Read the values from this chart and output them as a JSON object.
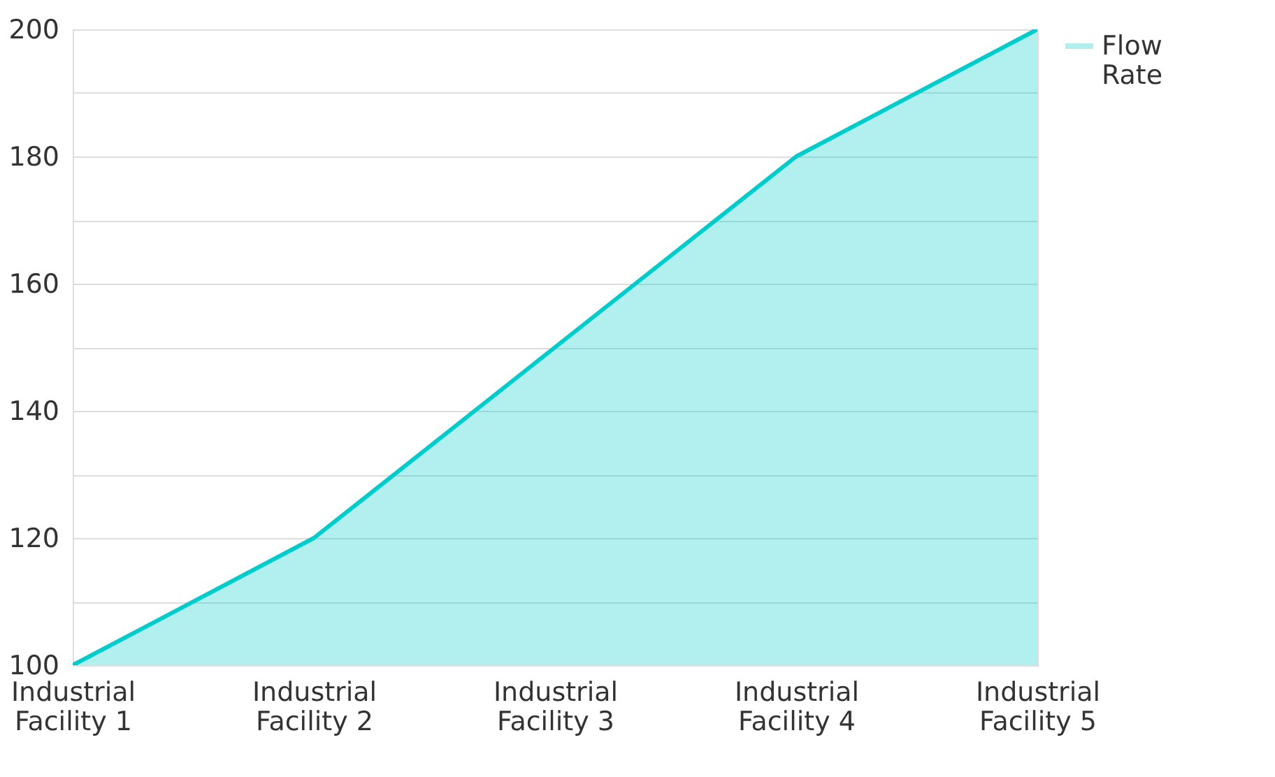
{
  "chart_data": {
    "type": "area",
    "categories": [
      "Industrial Facility 1",
      "Industrial Facility 2",
      "Industrial Facility 3",
      "Industrial Facility 4",
      "Industrial Facility 5"
    ],
    "series": [
      {
        "name": "Flow Rate",
        "color": "#00cccc",
        "values": [
          100,
          120,
          150,
          180,
          200
        ]
      }
    ],
    "ylim": [
      100,
      200
    ],
    "yticks": [
      100,
      {
        "value": 110,
        "label": null
      },
      120,
      {
        "value": 130,
        "label": null
      },
      140,
      {
        "value": 150,
        "label": null
      },
      160,
      {
        "value": 170,
        "label": null
      },
      180,
      {
        "value": 190,
        "label": null
      },
      200
    ],
    "grid": "y",
    "legend": "top right"
  }
}
